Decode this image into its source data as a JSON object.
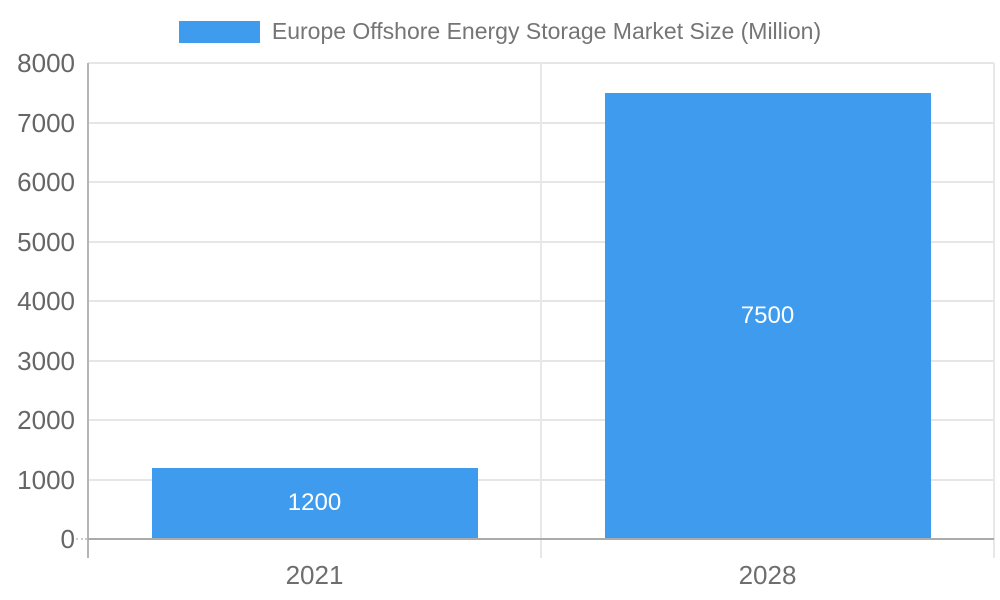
{
  "chart_data": {
    "type": "bar",
    "title": "Europe Offshore Energy Storage Market Size (Million)",
    "categories": [
      "2021",
      "2028"
    ],
    "series": [
      {
        "name": "Europe Offshore Energy Storage Market Size (Million)",
        "values": [
          1200,
          7500
        ]
      }
    ],
    "value_labels": [
      "1200",
      "7500"
    ],
    "xlabel": "",
    "ylabel": "",
    "ylim": [
      0,
      8000
    ],
    "yticks": [
      0,
      1000,
      2000,
      3000,
      4000,
      5000,
      6000,
      7000,
      8000
    ],
    "grid": "on",
    "legend_position": "top-center",
    "colors": {
      "bar": "#3e9bee",
      "value_label": "#ffffff",
      "ytick_text": "#666666",
      "xtick_text": "#6e6e6e",
      "title_text": "#757575",
      "gridline": "#e6e6e6",
      "baseline": "#ababab",
      "axis_line": "#b5b5b5"
    }
  }
}
